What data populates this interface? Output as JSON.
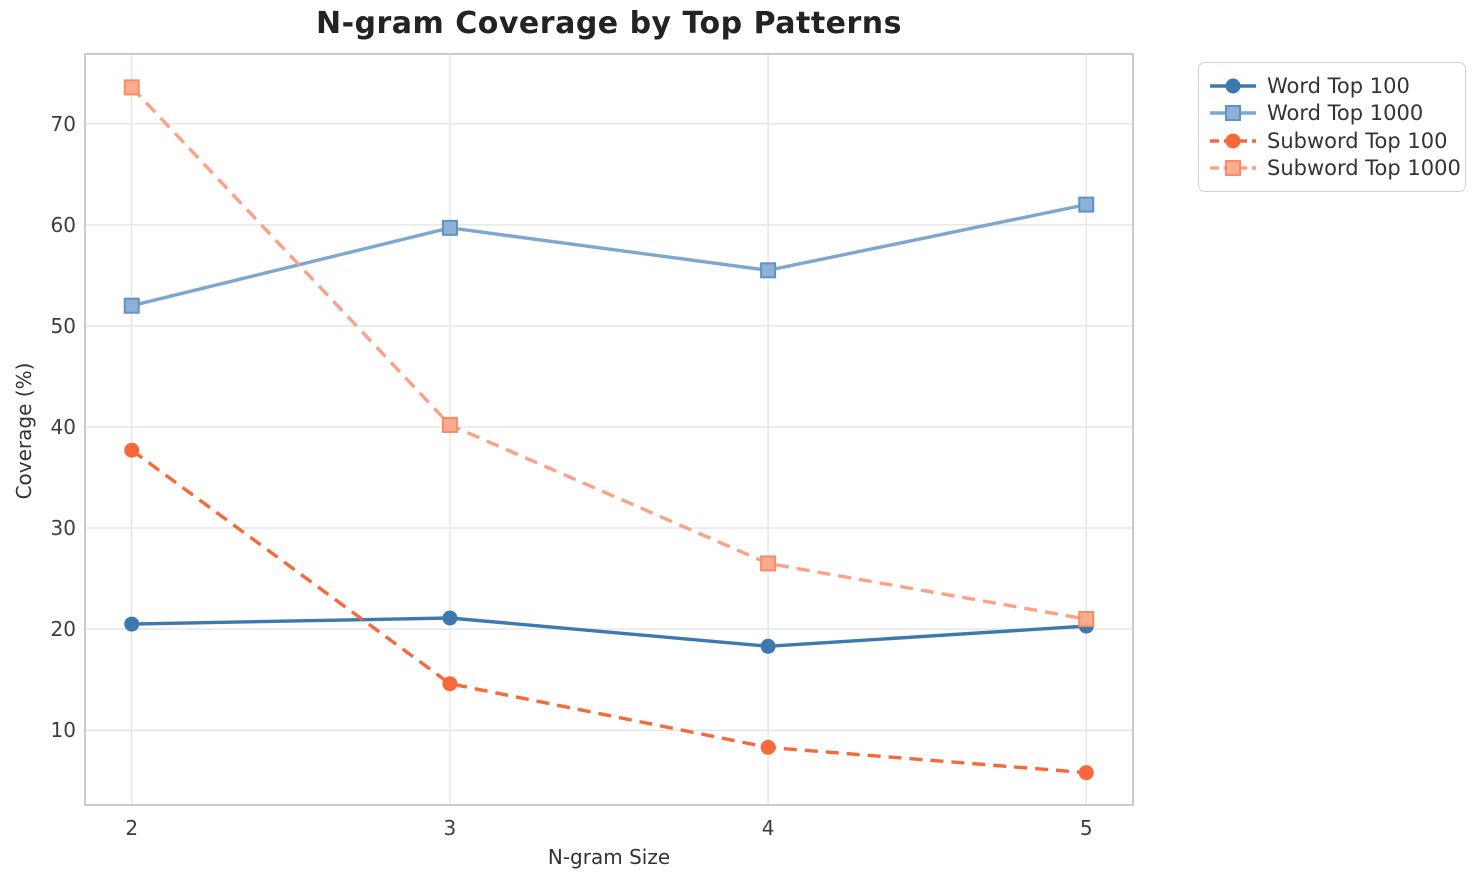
{
  "title": "N-gram Coverage by Top Patterns",
  "chart_data": {
    "type": "line",
    "title": "N-gram Coverage by Top Patterns",
    "xlabel": "N-gram Size",
    "ylabel": "Coverage (%)",
    "x": [
      2,
      3,
      4,
      5
    ],
    "x_ticks": [
      "2",
      "3",
      "4",
      "5"
    ],
    "y_ticks": [
      10,
      20,
      30,
      40,
      50,
      60,
      70
    ],
    "xlim": [
      1.85,
      5.15
    ],
    "ylim": [
      2.5,
      77.0
    ],
    "grid": true,
    "legend_position": "outside-upper-right",
    "series": [
      {
        "name": "Word Top 100",
        "values": [
          20.5,
          21.1,
          18.3,
          20.3
        ],
        "color": "#3c79ae",
        "line_style": "solid",
        "marker": "circle",
        "marker_fill": "#3c79ae",
        "marker_edge": "#3c79ae"
      },
      {
        "name": "Word Top 1000",
        "values": [
          52.0,
          59.7,
          55.5,
          62.0
        ],
        "color": "#7ba7d0",
        "line_style": "solid",
        "marker": "square",
        "marker_fill": "#8db2d6",
        "marker_edge": "#6092c5"
      },
      {
        "name": "Subword Top 100",
        "values": [
          37.7,
          14.6,
          8.3,
          5.8
        ],
        "color": "#f7693a",
        "line_style": "dashed",
        "marker": "circle",
        "marker_fill": "#f7693a",
        "marker_edge": "#f7693a"
      },
      {
        "name": "Subword Top 1000",
        "values": [
          73.6,
          40.2,
          26.5,
          21.0
        ],
        "color": "#fba286",
        "line_style": "dashed",
        "marker": "square",
        "marker_fill": "#fbab8e",
        "marker_edge": "#f98b66"
      }
    ]
  },
  "style": {
    "grid_color": "#e7e7e7",
    "border_color": "#cbcbcb",
    "title_color": "#232323",
    "tick_color": "#3d3d3d",
    "dash_pattern": "13 8"
  }
}
